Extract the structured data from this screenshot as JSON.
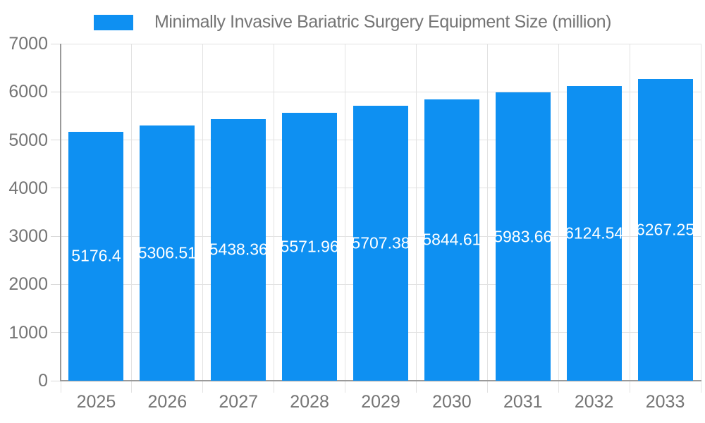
{
  "chart_data": {
    "type": "bar",
    "title": "Minimally Invasive Bariatric Surgery Equipment Size (million)",
    "categories": [
      "2025",
      "2026",
      "2027",
      "2028",
      "2029",
      "2030",
      "2031",
      "2032",
      "2033"
    ],
    "values": [
      5176.4,
      5306.51,
      5438.36,
      5571.96,
      5707.38,
      5844.61,
      5983.66,
      6124.54,
      6267.25
    ],
    "labels": [
      "5176.4",
      "5306.51",
      "5438.36",
      "5571.96",
      "5707.38",
      "5844.61",
      "5983.66",
      "6124.54",
      "6267.25"
    ],
    "xlabel": "",
    "ylabel": "",
    "ylim": [
      0,
      7000
    ],
    "y_ticks": [
      0,
      1000,
      2000,
      3000,
      4000,
      5000,
      6000,
      7000
    ],
    "grid": true,
    "legend_position": "top",
    "bar_color": "#0e90f2",
    "value_label_color": "#ffffff",
    "axis_text_color": "#757575",
    "gridline_color": "#e2e2e2",
    "axis_line_color": "#9a9a9a"
  }
}
